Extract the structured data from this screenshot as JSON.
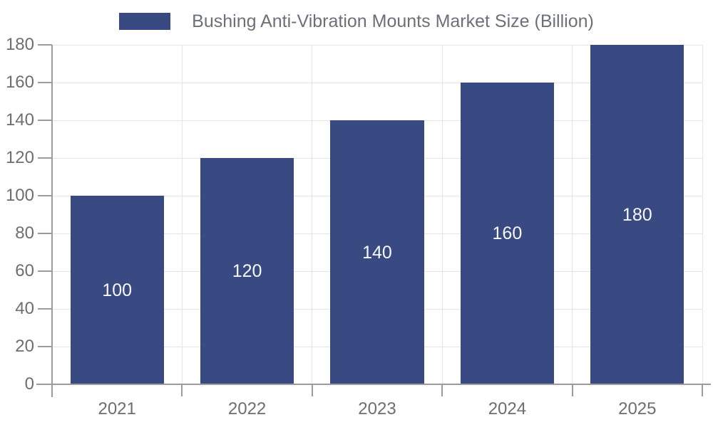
{
  "chart_data": {
    "type": "bar",
    "title": "Bushing Anti-Vibration Mounts Market Size (Billion)",
    "categories": [
      "2021",
      "2022",
      "2023",
      "2024",
      "2025"
    ],
    "values": [
      100,
      120,
      140,
      160,
      180
    ],
    "value_labels": [
      "100",
      "120",
      "140",
      "160",
      "180"
    ],
    "xlabel": "",
    "ylabel": "",
    "ylim": [
      0,
      180
    ],
    "ytick_step": 20,
    "ytick_labels": [
      "0",
      "20",
      "40",
      "60",
      "80",
      "100",
      "120",
      "140",
      "160",
      "180"
    ],
    "grid": true,
    "legend_position": "top-center",
    "colors": {
      "bar": "#384A81",
      "value_label": "#F7F8FA",
      "axis_text": "#6E6E6E",
      "grid_line": "#E4E4E9",
      "axis_line": "#9B9B9B",
      "legend_text": "#6E7079",
      "background": "#FFFFFF"
    }
  }
}
